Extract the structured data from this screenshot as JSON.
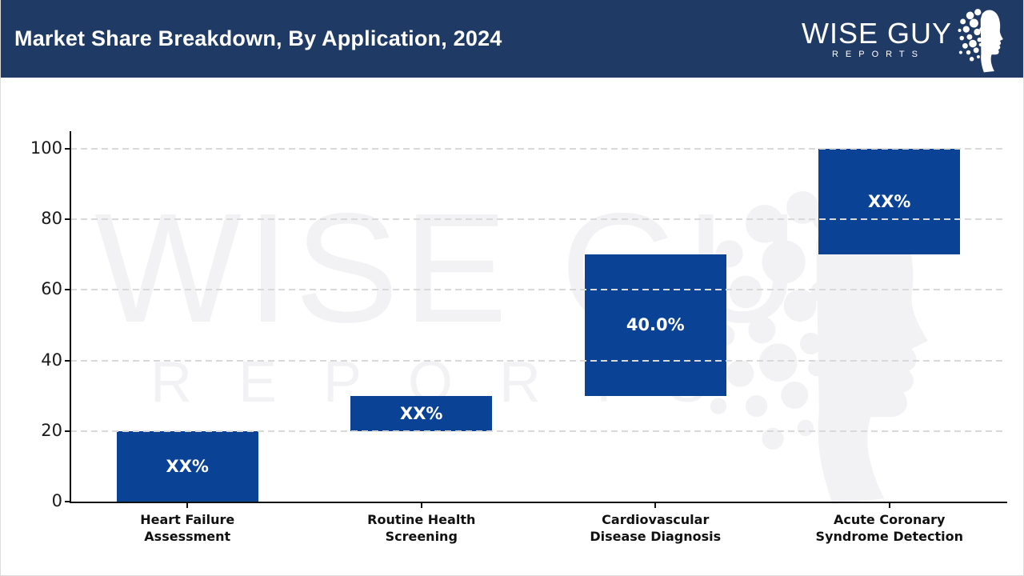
{
  "header": {
    "title": "Market Share Breakdown, By Application, 2024",
    "logo": {
      "line1": "WISE GUY",
      "line2": "REPORTS"
    }
  },
  "watermark": {
    "line1": "WISE GUY",
    "line2": "REPORTS"
  },
  "colors": {
    "header_bg": "#203a66",
    "bar": "#0a4296",
    "grid": "#d9d9d9",
    "axis": "#111111",
    "bar_label": "#ffffff",
    "watermark": "#f2f2f4",
    "background": "#ffffff"
  },
  "chart_data": {
    "type": "bar",
    "subtype": "waterfall",
    "title": "Market Share Breakdown, By Application, 2024",
    "xlabel": "",
    "ylabel": "",
    "ylim": [
      0,
      100
    ],
    "yticks": [
      0,
      20,
      40,
      60,
      80,
      100
    ],
    "grid": "horizontal-dashed, drawn above bars",
    "legend": "none",
    "categories": [
      "Heart Failure\nAssessment",
      "Routine Health\nScreening",
      "Cardiovascular\nDisease Diagnosis",
      "Acute Coronary\nSyndrome Detection"
    ],
    "bars": [
      {
        "category": "Heart Failure Assessment",
        "start": 0,
        "end": 20,
        "value_label": "XX%"
      },
      {
        "category": "Routine Health Screening",
        "start": 20,
        "end": 30,
        "value_label": "XX%"
      },
      {
        "category": "Cardiovascular Disease Diagnosis",
        "start": 30,
        "end": 70,
        "value_label": "40.0%"
      },
      {
        "category": "Acute Coronary Syndrome Detection",
        "start": 70,
        "end": 100,
        "value_label": "XX%"
      }
    ]
  }
}
